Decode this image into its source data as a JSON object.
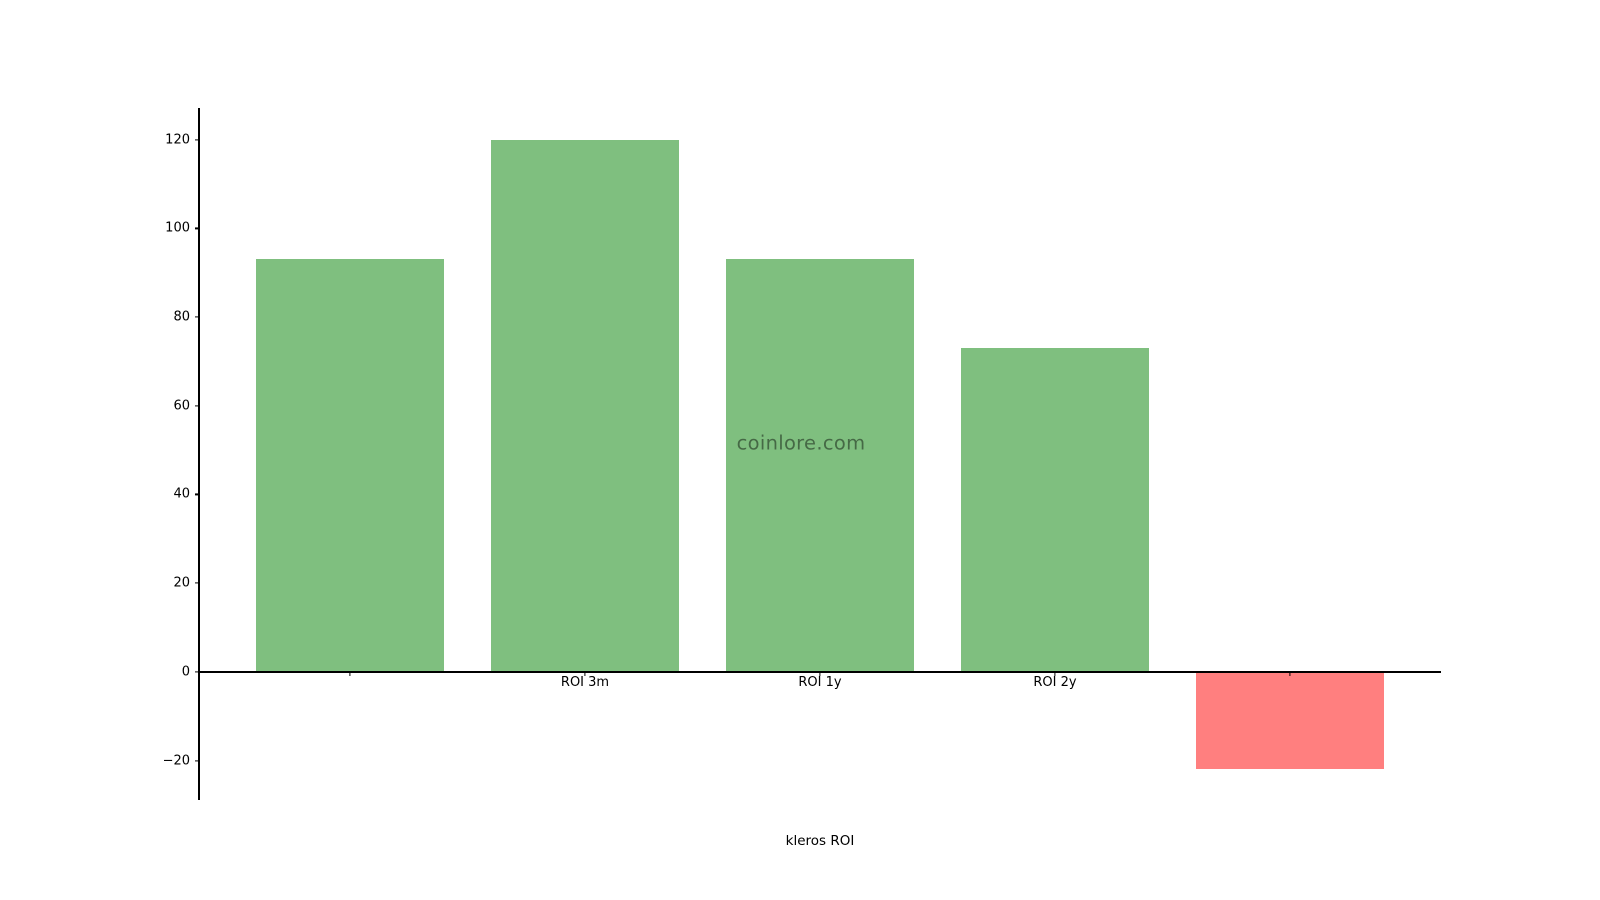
{
  "chart_data": {
    "type": "bar",
    "title": "",
    "xlabel": "kleros ROI",
    "ylabel": "",
    "categories": [
      "",
      "ROI 3m",
      "ROI 1y",
      "ROI 2y",
      ""
    ],
    "values": [
      93,
      120,
      93,
      73,
      -22
    ],
    "yticks": [
      120,
      100,
      80,
      60,
      40,
      20,
      0,
      -20
    ],
    "ylim": [
      -29,
      127
    ],
    "xlim_note": "5 bars, centers evenly spaced, bar width 0.8",
    "grid": false,
    "legend": null,
    "watermark": "coinlore.com",
    "colors": {
      "positive_bar": "#7fbf7f",
      "negative_bar": "#ff7f7f",
      "axis": "#000000",
      "tick_label": "#000000"
    }
  }
}
